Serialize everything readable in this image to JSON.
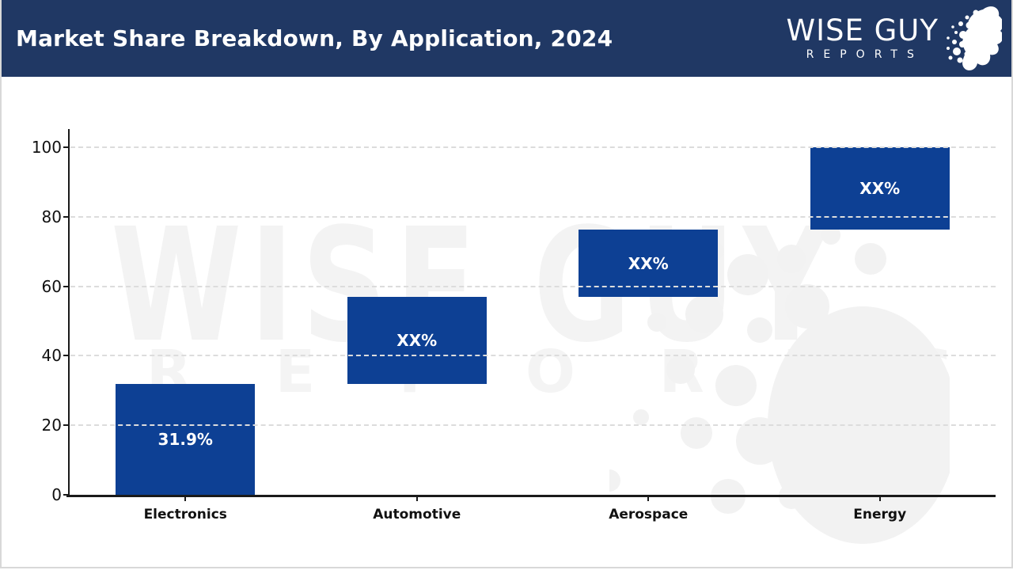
{
  "header": {
    "title": "Market Share Breakdown, By Application, 2024",
    "brand": {
      "line1": "WISE GUY",
      "line2": "REPORTS"
    }
  },
  "watermark": {
    "line1": "WISE GUY",
    "line2": "R E P O R T S"
  },
  "colors": {
    "header_bg": "#203864",
    "bar": "#0d4094",
    "grid": "#dcdcdc",
    "axis": "#1a1a1a",
    "bar_label": "#ffffff",
    "watermark": "#f3f3f3"
  },
  "chart_data": {
    "type": "bar",
    "subtype": "waterfall",
    "title": "Market Share Breakdown, By Application, 2024",
    "xlabel": "",
    "ylabel": "",
    "categories": [
      "Electronics",
      "Automotive",
      "Aerospace",
      "Energy"
    ],
    "segments": [
      {
        "category": "Electronics",
        "start": 0,
        "end": 31.9,
        "label": "31.9%"
      },
      {
        "category": "Automotive",
        "start": 31.9,
        "end": 57.0,
        "label": "XX%"
      },
      {
        "category": "Aerospace",
        "start": 57.0,
        "end": 76.2,
        "label": "XX%"
      },
      {
        "category": "Energy",
        "start": 76.3,
        "end": 100.0,
        "label": "XX%"
      }
    ],
    "yticks": [
      0,
      20,
      40,
      60,
      80,
      100
    ],
    "ylim": [
      0,
      105
    ],
    "grid": "horizontal-dashed",
    "legend": "none",
    "bar_color": "#0d4094"
  }
}
